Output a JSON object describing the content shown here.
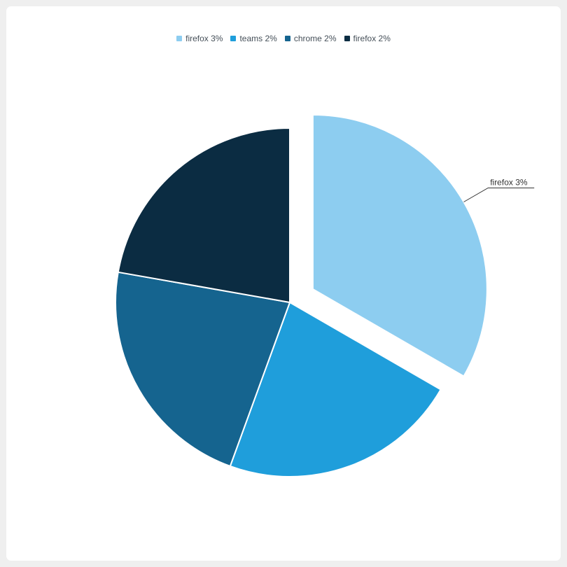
{
  "page": {
    "background_color": "#efefef",
    "card_color": "#ffffff"
  },
  "chart_data": {
    "type": "pie",
    "title": "",
    "legend_position": "top-center",
    "direction": "clockwise",
    "start_angle_deg": 0,
    "total": 9,
    "slices": [
      {
        "label": "firefox",
        "value": 3,
        "display": "firefox 3%",
        "share_pct": 33.3,
        "color": "#8dcdf0",
        "exploded": true
      },
      {
        "label": "teams",
        "value": 2,
        "display": "teams 2%",
        "share_pct": 22.2,
        "color": "#1f9edb",
        "exploded": false
      },
      {
        "label": "chrome",
        "value": 2,
        "display": "chrome 2%",
        "share_pct": 22.2,
        "color": "#15648f",
        "exploded": false
      },
      {
        "label": "firefox",
        "value": 2,
        "display": "firefox 2%",
        "share_pct": 22.2,
        "color": "#0b2c42",
        "exploded": false
      }
    ],
    "callout": {
      "text": "firefox 3%",
      "target_slice": 0,
      "line_color": "#333333",
      "text_color": "#333333"
    },
    "slice_border_color": "#ffffff"
  }
}
